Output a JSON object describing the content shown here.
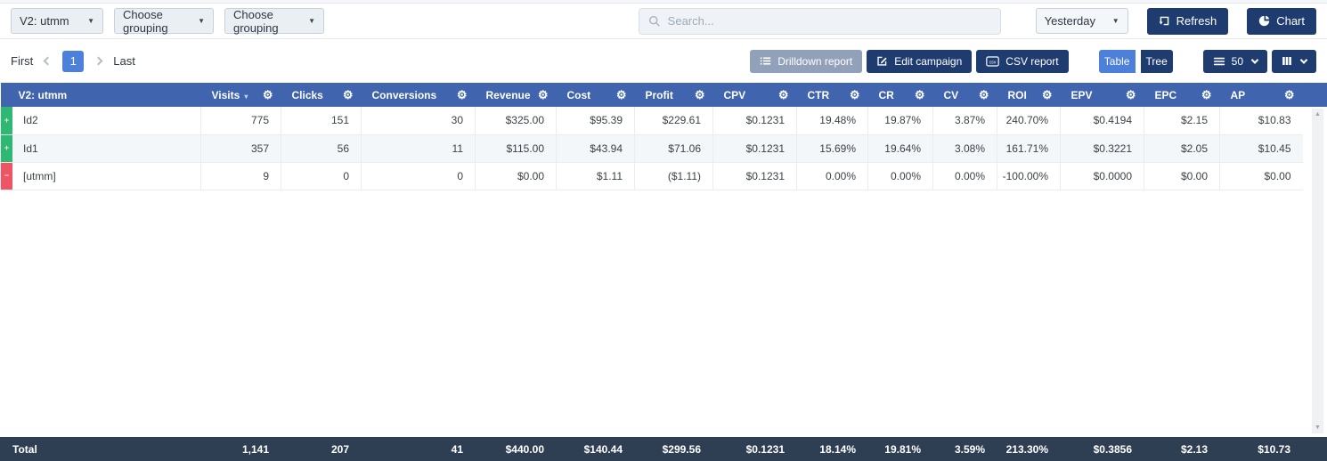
{
  "toolbar": {
    "traffic_source_filter": "V2: utmm",
    "grouping_filters": [
      "Choose grouping",
      "Choose grouping"
    ],
    "search_placeholder": "Search...",
    "date_range": "Yesterday",
    "refresh_label": "Refresh",
    "chart_label": "Chart"
  },
  "action_bar": {
    "pagination": {
      "first_label": "First",
      "current_page": "1",
      "last_label": "Last"
    },
    "drilldown_label": "Drilldown report",
    "edit_campaign_label": "Edit campaign",
    "csv_label": "CSV report",
    "view_table_label": "Table",
    "view_tree_label": "Tree",
    "rows_per_page": "50"
  },
  "table": {
    "name_column_header": "V2: utmm",
    "sorted_column": "Visits",
    "columns": [
      "Visits",
      "Clicks",
      "Conversions",
      "Revenue",
      "Cost",
      "Profit",
      "CPV",
      "CTR",
      "CR",
      "CV",
      "ROI",
      "EPV",
      "EPC",
      "AP"
    ],
    "colored_columns": [
      5,
      10
    ],
    "rows": [
      {
        "name": "Id2",
        "trend": "up",
        "values": [
          "775",
          "151",
          "30",
          "$325.00",
          "$95.39",
          "$229.61",
          "$0.1231",
          "19.48%",
          "19.87%",
          "3.87%",
          "240.70%",
          "$0.4194",
          "$2.15",
          "$10.83"
        ]
      },
      {
        "name": "Id1",
        "trend": "up",
        "values": [
          "357",
          "56",
          "11",
          "$115.00",
          "$43.94",
          "$71.06",
          "$0.1231",
          "15.69%",
          "19.64%",
          "3.08%",
          "161.71%",
          "$0.3221",
          "$2.05",
          "$10.45"
        ]
      },
      {
        "name": "[utmm]",
        "trend": "down",
        "values": [
          "9",
          "0",
          "0",
          "$0.00",
          "$1.11",
          "($1.11)",
          "$0.1231",
          "0.00%",
          "0.00%",
          "0.00%",
          "-100.00%",
          "$0.0000",
          "$0.00",
          "$0.00"
        ]
      }
    ],
    "total_row": {
      "label": "Total",
      "values": [
        "1,141",
        "207",
        "41",
        "$440.00",
        "$140.44",
        "$299.56",
        "$0.1231",
        "18.14%",
        "19.81%",
        "3.59%",
        "213.30%",
        "$0.3856",
        "$2.13",
        "$10.73"
      ]
    }
  },
  "colors": {
    "header_blue": "#4064ad",
    "navy_button": "#1f3c70",
    "accent_blue": "#4c80da",
    "total_bar": "#2e3f54",
    "positive_green": "#27ae60",
    "negative_red": "#ed5565",
    "total_green": "#36e577"
  }
}
